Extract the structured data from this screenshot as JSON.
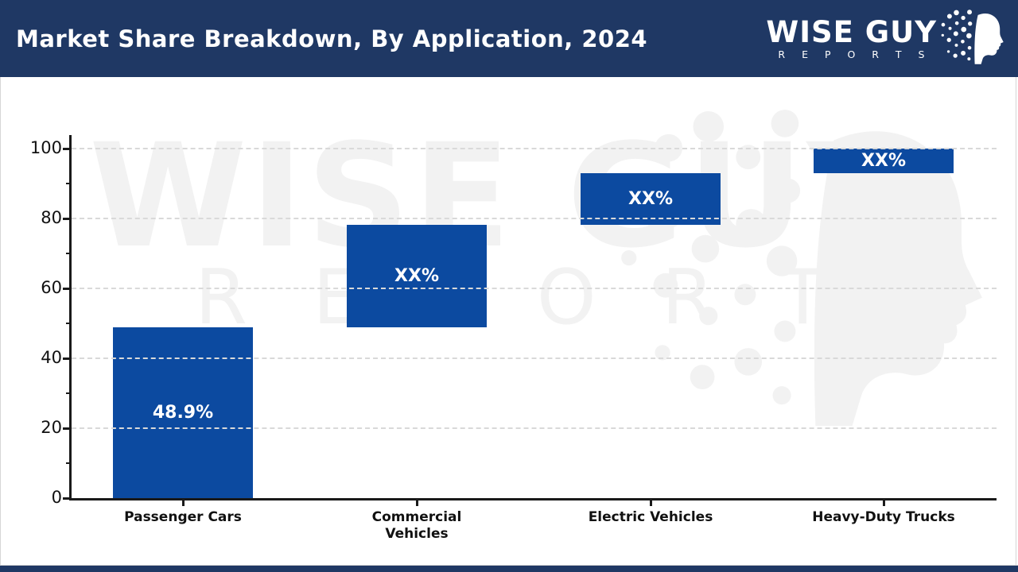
{
  "header": {
    "title": "Market Share Breakdown, By Application, 2024",
    "logo": {
      "line1": "WISE GUY",
      "line2": "R E P O R T S"
    }
  },
  "watermark": {
    "line1": "WISE GUY",
    "line2": "R E P O R T S"
  },
  "chart_data": {
    "type": "bar",
    "subtype": "waterfall",
    "title": "Market Share Breakdown, By Application, 2024",
    "categories": [
      "Passenger Cars",
      "Commercial Vehicles",
      "Electric Vehicles",
      "Heavy-Duty Trucks"
    ],
    "x_label_lines": [
      [
        "Passenger Cars"
      ],
      [
        "Commercial",
        "Vehicles"
      ],
      [
        "Electric Vehicles"
      ],
      [
        "Heavy-Duty Trucks"
      ]
    ],
    "segments": [
      {
        "category": "Passenger Cars",
        "start": 0,
        "end": 48.9,
        "label": "48.9%"
      },
      {
        "category": "Commercial Vehicles",
        "start": 48.9,
        "end": 78.2,
        "label": "XX%"
      },
      {
        "category": "Electric Vehicles",
        "start": 78.2,
        "end": 93.0,
        "label": "XX%"
      },
      {
        "category": "Heavy-Duty Trucks",
        "start": 93.0,
        "end": 100.0,
        "label": "XX%"
      }
    ],
    "ylabel": "",
    "xlabel": "",
    "ylim": [
      0,
      100
    ],
    "yticks": [
      0,
      20,
      40,
      60,
      80,
      100
    ],
    "minor_yticks": [
      10,
      30,
      50,
      70,
      90
    ],
    "grid": "horizontal-dashed",
    "legend": "none"
  },
  "colors": {
    "header_bg": "#1F3864",
    "footer_bg": "#1F3864",
    "bar": "#0C4AA0",
    "bar_label": "#FFFFFF",
    "grid": "#D9D9D9",
    "axis": "#1A1A1A",
    "watermark": "#F2F2F2"
  }
}
